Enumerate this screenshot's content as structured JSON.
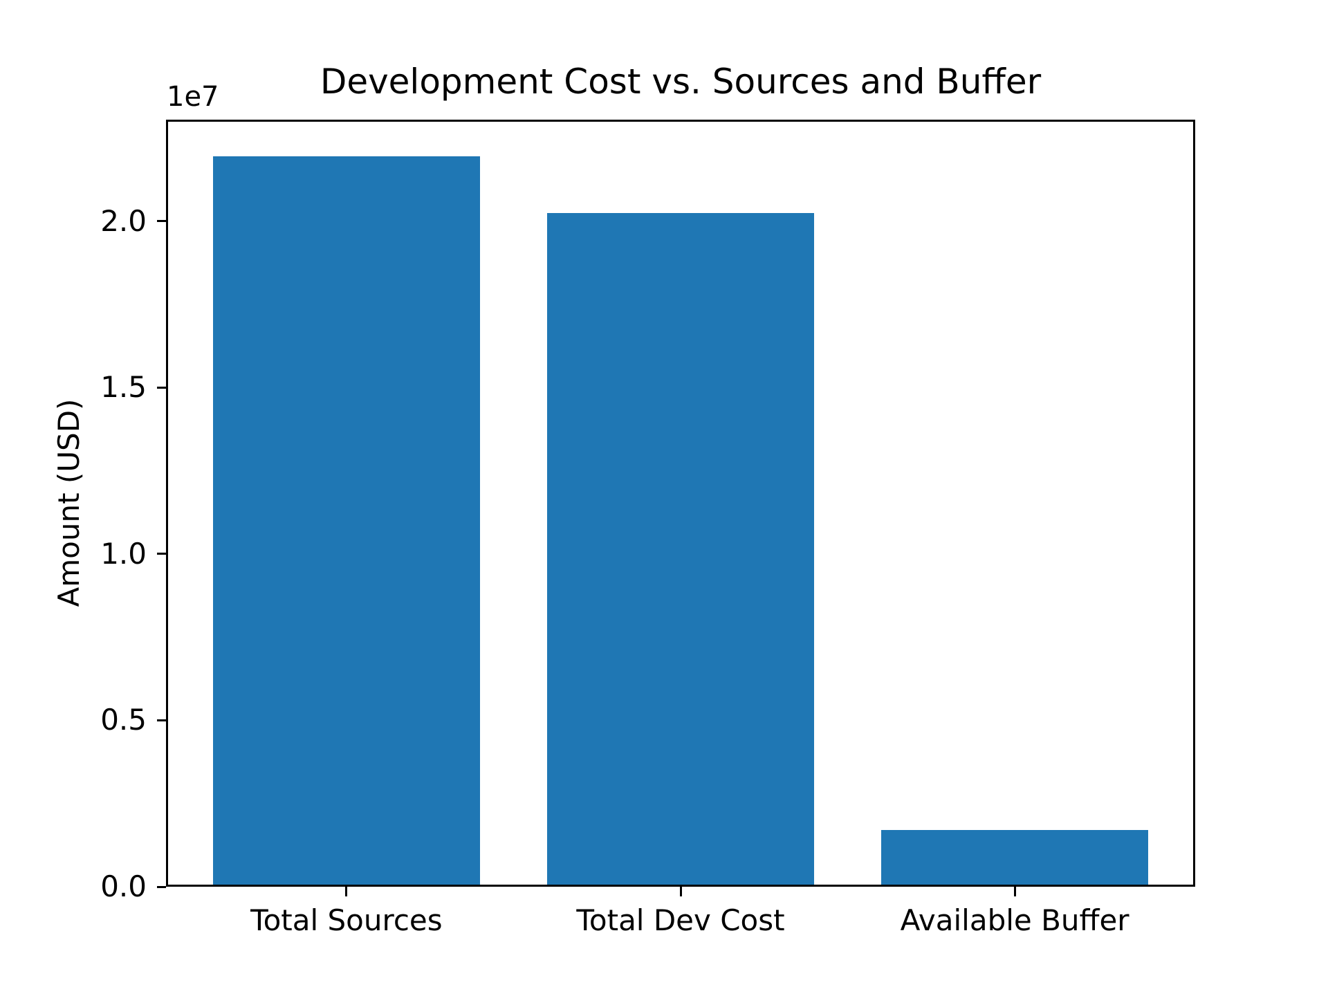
{
  "chart_data": {
    "type": "bar",
    "title": "Development Cost vs. Sources and Buffer",
    "ylabel": "Amount (USD)",
    "xlabel": "",
    "offset_text": "1e7",
    "categories": [
      "Total Sources",
      "Total Dev Cost",
      "Available Buffer"
    ],
    "values": [
      21950000,
      20250000,
      1700000
    ],
    "bar_color": "#1f77b4",
    "bar_width_fraction": 0.8,
    "xlim": [
      -0.54,
      2.54
    ],
    "ylim": [
      0,
      23047500
    ],
    "yticks": [
      0,
      5000000,
      10000000,
      15000000,
      20000000
    ],
    "ytick_labels": [
      "0.0",
      "0.5",
      "1.0",
      "1.5",
      "2.0"
    ],
    "grid": false,
    "legend": null,
    "text_color": "#000000",
    "spine_color": "#000000",
    "background_color": "#ffffff"
  }
}
